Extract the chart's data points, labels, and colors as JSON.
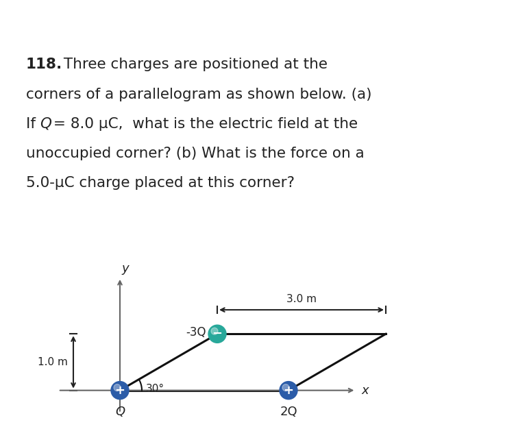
{
  "title_number": "118.",
  "line1_rest": " Three charges are positioned at the",
  "line2": "corners of a parallelogram as shown below. (a)",
  "line3": "If Q = 8.0 μC,  what is the electric field at the",
  "line4": "unoccupied corner? (b) What is the force on a",
  "line5": "5.0-μC charge placed at this corner?",
  "bg_color": "#ffffff",
  "header_color": "#5b9e35",
  "text_color": "#222222",
  "dim_1m": "1.0 m",
  "dim_3m": "3.0 m",
  "charge_Q_label": "Q",
  "charge_2Q_label": "2Q",
  "charge_neg3Q_label": "-3Q",
  "Q_color": "#2b5ca8",
  "twoQ_color": "#2b5ca8",
  "neg3Q_color": "#28a89a",
  "line_color": "#111111",
  "axis_color": "#666666",
  "dim_line_color": "#222222",
  "angle_label": "30°",
  "x_label": "x",
  "y_label": "y"
}
